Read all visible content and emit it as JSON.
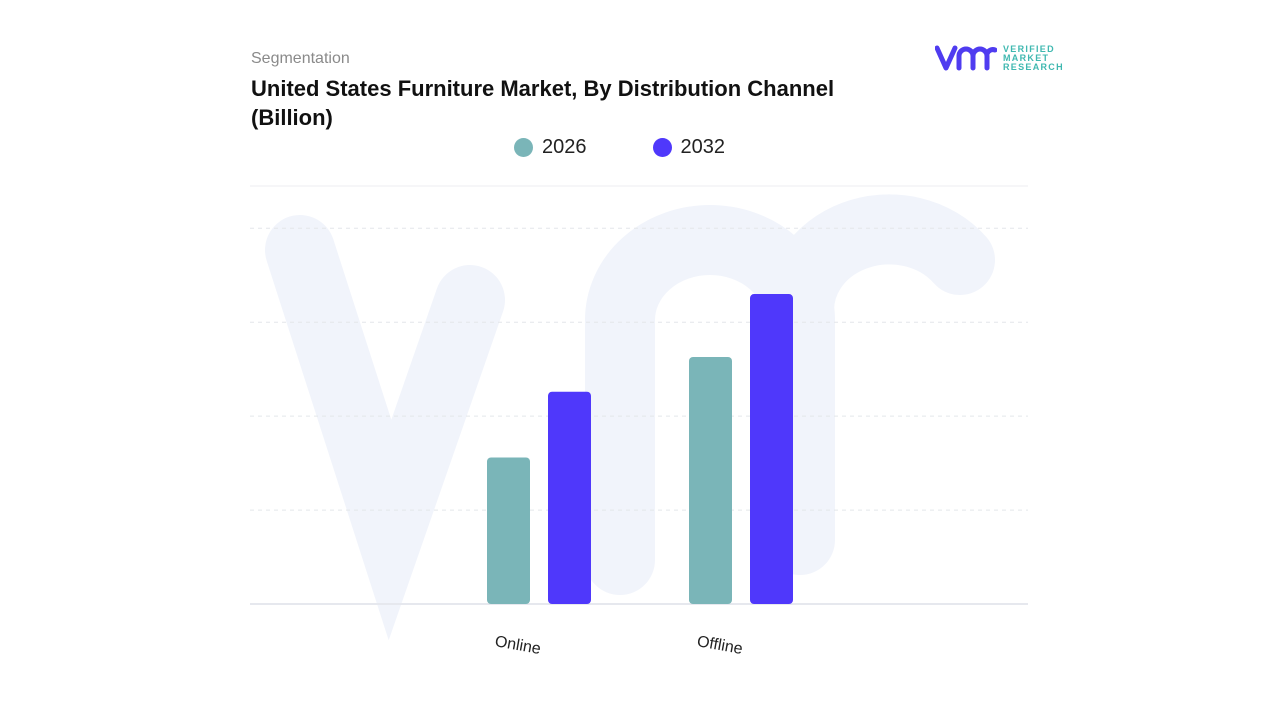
{
  "header": {
    "segment": "Segmentation",
    "title": "United States Furniture Market, By Distribution Channel (Billion)"
  },
  "logo": {
    "mark": "vmr",
    "line1": "VERIFIED",
    "line2": "MARKET",
    "line3": "RESEARCH",
    "color": "#4f3cf0",
    "text_color": "#3fb8b0"
  },
  "chart_data": {
    "type": "bar",
    "title": "United States Furniture Market, By Distribution Channel (Billion)",
    "categories": [
      "Online",
      "Offline"
    ],
    "series": [
      {
        "name": "2026",
        "values": [
          1.56,
          2.63
        ],
        "color": "#7ab5b8"
      },
      {
        "name": "2032",
        "values": [
          2.26,
          3.3
        ],
        "color": "#4f38fb"
      }
    ],
    "ylim": [
      0,
      4.45
    ],
    "grid": true,
    "legend": "top-center",
    "y_tick_labels_shown": false
  }
}
